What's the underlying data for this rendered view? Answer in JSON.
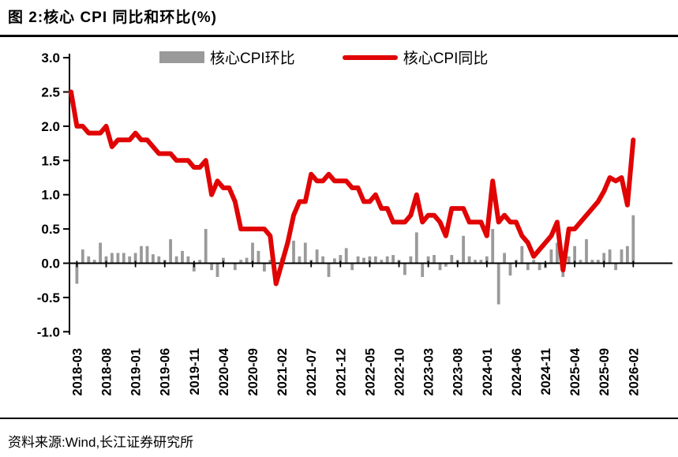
{
  "header": {
    "title": "图 2:核心 CPI 同比和环比(%)"
  },
  "legend": {
    "mom": "核心CPI环比",
    "yoy": "核心CPI同比"
  },
  "footer": {
    "source": "资料来源:Wind,长江证券研究所"
  },
  "colors": {
    "bar": "#9a9a9a",
    "line": "#e00404",
    "axis": "#000000",
    "text": "#000000"
  },
  "chart_data": {
    "type": "bar+line",
    "title": "核心 CPI 同比和环比(%)",
    "xlabel": "",
    "ylabel": "",
    "ylim": [
      -1.0,
      3.0
    ],
    "ytick_step": 0.5,
    "yticks": [
      "3.0",
      "2.5",
      "2.0",
      "1.5",
      "1.0",
      "0.5",
      "0.0",
      "-0.5",
      "-1.0"
    ],
    "grid": false,
    "legend_position": "top-center",
    "x": [
      "2018-02",
      "2018-03",
      "2018-04",
      "2018-05",
      "2018-06",
      "2018-07",
      "2018-08",
      "2018-09",
      "2018-10",
      "2018-11",
      "2018-12",
      "2019-01",
      "2019-02",
      "2019-03",
      "2019-04",
      "2019-05",
      "2019-06",
      "2019-07",
      "2019-08",
      "2019-09",
      "2019-10",
      "2019-11",
      "2019-12",
      "2020-01",
      "2020-02",
      "2020-03",
      "2020-04",
      "2020-05",
      "2020-06",
      "2020-07",
      "2020-08",
      "2020-09",
      "2020-10",
      "2020-11",
      "2020-12",
      "2021-01",
      "2021-02",
      "2021-03",
      "2021-04",
      "2021-05",
      "2021-06",
      "2021-07",
      "2021-08",
      "2021-09",
      "2021-10",
      "2021-11",
      "2021-12",
      "2022-01",
      "2022-02",
      "2022-03",
      "2022-04",
      "2022-05",
      "2022-06",
      "2022-07",
      "2022-08",
      "2022-09",
      "2022-10",
      "2022-11",
      "2022-12",
      "2023-01",
      "2023-02",
      "2023-03",
      "2023-04",
      "2023-05",
      "2023-06",
      "2023-07",
      "2023-08",
      "2023-09",
      "2023-10",
      "2023-11",
      "2023-12",
      "2024-01",
      "2024-02",
      "2024-03",
      "2024-04",
      "2024-05",
      "2024-06",
      "2024-07",
      "2024-08",
      "2024-09",
      "2024-10",
      "2024-11",
      "2024-12",
      "2025-01",
      "2025-02",
      "2025-03",
      "2025-04",
      "2025-05",
      "2025-06",
      "2025-07",
      "2025-08",
      "2025-09",
      "2025-10",
      "2025-11",
      "2025-12",
      "2026-01",
      "2026-02"
    ],
    "xtick_labels": [
      "2018-03",
      "2018-08",
      "2019-01",
      "2019-06",
      "2019-11",
      "2020-04",
      "2020-09",
      "2021-02",
      "2021-07",
      "2021-12",
      "2022-05",
      "2022-10",
      "2023-03",
      "2023-08",
      "2024-01",
      "2024-06",
      "2024-11",
      "2025-04",
      "2025-09",
      "2026-02"
    ],
    "xtick_first_index": 1,
    "xtick_every": 5,
    "series": [
      {
        "name": "核心CPI环比",
        "type": "bar",
        "values": [
          0,
          -0.3,
          0.2,
          0.1,
          0.05,
          0.3,
          0.1,
          0.15,
          0.15,
          0.15,
          0.1,
          0.15,
          0.25,
          0.25,
          0.13,
          0.1,
          0.05,
          0.35,
          0.1,
          0.18,
          0.1,
          -0.12,
          0.05,
          0.5,
          -0.1,
          -0.2,
          0.08,
          0,
          -0.1,
          0.05,
          0.08,
          0.3,
          0.18,
          -0.12,
          0.05,
          0,
          0.08,
          0,
          0.33,
          0.1,
          0.3,
          0.05,
          0.2,
          0.1,
          -0.2,
          0.07,
          0.12,
          0.22,
          -0.1,
          0.1,
          0.08,
          0.1,
          0.1,
          0.05,
          0.1,
          0.12,
          0.05,
          -0.17,
          0.1,
          0.45,
          -0.2,
          0.1,
          0.12,
          -0.1,
          -0.05,
          0.12,
          0.05,
          0.4,
          0.1,
          0.05,
          0.05,
          0.1,
          0.5,
          -0.6,
          0.15,
          -0.18,
          0.05,
          0.25,
          -0.1,
          0.05,
          -0.1,
          -0.07,
          0.2,
          0.3,
          -0.2,
          0.1,
          0.25,
          0.05,
          0.35,
          0.05,
          0.05,
          0.15,
          0.2,
          -0.1,
          0.2,
          0.25,
          0.7
        ]
      },
      {
        "name": "核心CPI同比",
        "type": "line",
        "values": [
          2.5,
          2.0,
          2.0,
          1.9,
          1.9,
          1.9,
          2.0,
          1.7,
          1.8,
          1.8,
          1.8,
          1.9,
          1.8,
          1.8,
          1.7,
          1.6,
          1.6,
          1.6,
          1.5,
          1.5,
          1.5,
          1.4,
          1.4,
          1.5,
          1.0,
          1.2,
          1.1,
          1.1,
          0.9,
          0.5,
          0.5,
          0.5,
          0.5,
          0.5,
          0.4,
          -0.3,
          0.0,
          0.3,
          0.7,
          0.9,
          0.9,
          1.3,
          1.2,
          1.2,
          1.3,
          1.2,
          1.2,
          1.2,
          1.1,
          1.1,
          0.9,
          0.9,
          1.0,
          0.8,
          0.8,
          0.6,
          0.6,
          0.6,
          0.7,
          1.0,
          0.6,
          0.7,
          0.7,
          0.6,
          0.4,
          0.8,
          0.8,
          0.8,
          0.6,
          0.6,
          0.6,
          0.4,
          1.2,
          0.6,
          0.7,
          0.6,
          0.6,
          0.4,
          0.3,
          0.1,
          0.2,
          0.3,
          0.4,
          0.6,
          -0.1,
          0.5,
          0.5,
          0.6,
          0.7,
          0.8,
          0.9,
          1.05,
          1.25,
          1.2,
          1.25,
          0.85,
          1.8
        ]
      }
    ]
  }
}
